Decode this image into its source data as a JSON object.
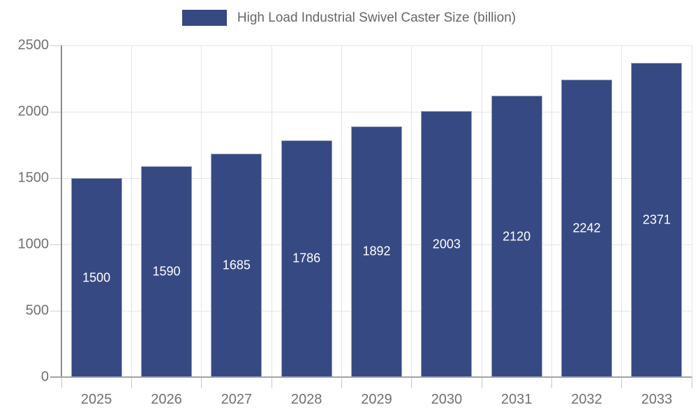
{
  "chart_data": {
    "type": "bar",
    "title": "High Load Industrial Swivel Caster Size (billion)",
    "categories": [
      "2025",
      "2026",
      "2027",
      "2028",
      "2029",
      "2030",
      "2031",
      "2032",
      "2033"
    ],
    "values": [
      1500,
      1590,
      1685,
      1786,
      1892,
      2003,
      2120,
      2242,
      2371
    ],
    "xlabel": "",
    "ylabel": "",
    "ylim": [
      0,
      2500
    ],
    "yticks": [
      0,
      500,
      1000,
      1500,
      2000,
      2500
    ],
    "grid": true,
    "legend_position": "top",
    "bar_color": "#374982",
    "bar_label_color": "#ffffff"
  }
}
